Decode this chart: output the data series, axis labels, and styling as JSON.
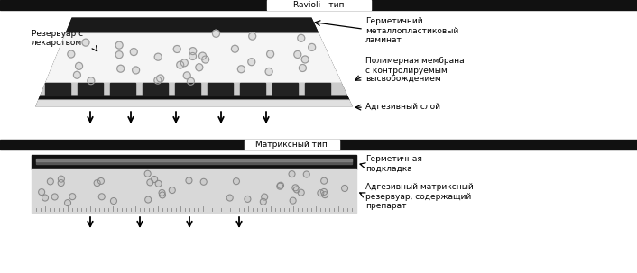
{
  "title1": "Ravioli - тип",
  "title2": "Матриксный тип",
  "label_reservoir": "Резервуар с\nлекарством",
  "label_laminate": "Герметичний\nметаллопластиковый\nламинат",
  "label_membrane": "Полимерная мембрана\nс контролируемым\nвысвобождением",
  "label_adhesive1": "Адгезивный слой",
  "label_backing2": "Герметичная\nподкладка",
  "label_adhesive2": "Адгезивный матриксный\nрезервуар, содержащий\nпрепарат",
  "bg_color": "#ffffff"
}
